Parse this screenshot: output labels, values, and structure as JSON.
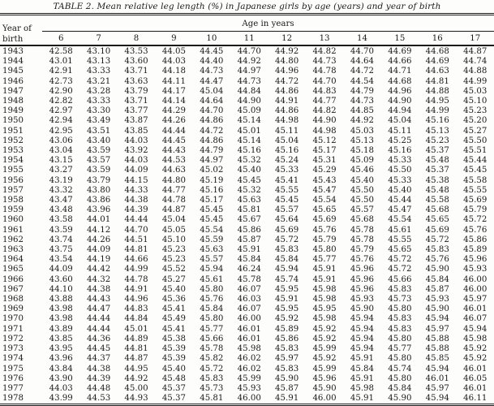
{
  "page": {
    "title_label": "TABLE 2.",
    "title_text": "Mean relative leg length (%) in Japanese girls by age (years) and year of birth"
  },
  "chart_data": {
    "type": "table",
    "title": "TABLE 2. Mean relative leg length (%) in Japanese girls by age (years) and year of birth",
    "row_header": "Year of birth",
    "row_header_lines": [
      "Year of",
      "birth"
    ],
    "column_group_header": "Age in years",
    "columns": [
      "6",
      "7",
      "8",
      "9",
      "10",
      "11",
      "12",
      "13",
      "14",
      "15",
      "16",
      "17"
    ],
    "rows": [
      {
        "year": "1943",
        "values": [
          "42.58",
          "43.10",
          "43.53",
          "44.05",
          "44.45",
          "44.70",
          "44.92",
          "44.82",
          "44.70",
          "44.69",
          "44.68",
          "44.87"
        ]
      },
      {
        "year": "1944",
        "values": [
          "43.01",
          "43.13",
          "43.60",
          "44.03",
          "44.40",
          "44.92",
          "44.80",
          "44.73",
          "44.64",
          "44.66",
          "44.69",
          "44.74"
        ]
      },
      {
        "year": "1945",
        "values": [
          "42.91",
          "43.33",
          "43.71",
          "44.18",
          "44.73",
          "44.97",
          "44.96",
          "44.78",
          "44.72",
          "44.71",
          "44.63",
          "44.88"
        ]
      },
      {
        "year": "1946",
        "values": [
          "42.73",
          "43.21",
          "43.63",
          "44.11",
          "44.47",
          "44.73",
          "44.72",
          "44.70",
          "44.54",
          "44.68",
          "44.81",
          "44.99"
        ]
      },
      {
        "year": "1947",
        "values": [
          "42.90",
          "43.28",
          "43.79",
          "44.17",
          "45.04",
          "44.84",
          "44.86",
          "44.83",
          "44.79",
          "44.96",
          "44.88",
          "45.03"
        ]
      },
      {
        "year": "1948",
        "values": [
          "42.82",
          "43.33",
          "43.71",
          "44.14",
          "44.64",
          "44.90",
          "44.91",
          "44.77",
          "44.73",
          "44.90",
          "44.95",
          "45.10"
        ]
      },
      {
        "year": "1949",
        "values": [
          "42.97",
          "43.30",
          "43.77",
          "44.29",
          "44.70",
          "45.09",
          "44.86",
          "44.82",
          "44.85",
          "44.94",
          "44.99",
          "45.23"
        ]
      },
      {
        "year": "1950",
        "values": [
          "42.94",
          "43.49",
          "43.87",
          "44.26",
          "44.86",
          "45.14",
          "44.98",
          "44.90",
          "44.92",
          "45.04",
          "45.16",
          "45.20"
        ]
      },
      {
        "year": "1951",
        "values": [
          "42.95",
          "43.51",
          "43.85",
          "44.44",
          "44.72",
          "45.01",
          "45.11",
          "44.98",
          "45.03",
          "45.11",
          "45.13",
          "45.27"
        ]
      },
      {
        "year": "1952",
        "values": [
          "43.06",
          "43.40",
          "44.03",
          "44.45",
          "44.86",
          "45.14",
          "45.04",
          "45.12",
          "45.13",
          "45.25",
          "45.23",
          "45.50"
        ]
      },
      {
        "year": "1953",
        "values": [
          "43.04",
          "43.59",
          "43.92",
          "44.43",
          "44.79",
          "45.16",
          "45.16",
          "45.17",
          "45.18",
          "45.16",
          "45.37",
          "45.51"
        ]
      },
      {
        "year": "1954",
        "values": [
          "43.15",
          "43.57",
          "44.03",
          "44.53",
          "44.97",
          "45.32",
          "45.24",
          "45.31",
          "45.09",
          "45.33",
          "45.48",
          "45.44"
        ]
      },
      {
        "year": "1955",
        "values": [
          "43.27",
          "43.59",
          "44.09",
          "44.63",
          "45.02",
          "45.40",
          "45.33",
          "45.29",
          "45.46",
          "45.50",
          "45.37",
          "45.45"
        ]
      },
      {
        "year": "1956",
        "values": [
          "43.19",
          "43.79",
          "44.15",
          "44.80",
          "45.19",
          "45.45",
          "45.41",
          "45.43",
          "45.40",
          "45.33",
          "45.38",
          "45.58"
        ]
      },
      {
        "year": "1957",
        "values": [
          "43.32",
          "43.80",
          "44.33",
          "44.77",
          "45.16",
          "45.32",
          "45.55",
          "45.47",
          "45.50",
          "45.40",
          "45.48",
          "45.55"
        ]
      },
      {
        "year": "1958",
        "values": [
          "43.47",
          "43.86",
          "44.38",
          "44.78",
          "45.17",
          "45.63",
          "45.45",
          "45.54",
          "45.50",
          "45.44",
          "45.58",
          "45.69"
        ]
      },
      {
        "year": "1959",
        "values": [
          "43.48",
          "43.96",
          "44.39",
          "44.87",
          "45.45",
          "45.81",
          "45.57",
          "45.65",
          "45.57",
          "45.47",
          "45.68",
          "45.79"
        ]
      },
      {
        "year": "1960",
        "values": [
          "43.58",
          "44.01",
          "44.44",
          "45.04",
          "45.45",
          "45.67",
          "45.64",
          "45.69",
          "45.68",
          "45.54",
          "45.65",
          "45.72"
        ]
      },
      {
        "year": "1961",
        "values": [
          "43.59",
          "44.12",
          "44.70",
          "45.05",
          "45.54",
          "45.86",
          "45.69",
          "45.76",
          "45.78",
          "45.61",
          "45.69",
          "45.76"
        ]
      },
      {
        "year": "1962",
        "values": [
          "43.74",
          "44.26",
          "44.51",
          "45.10",
          "45.59",
          "45.87",
          "45.72",
          "45.79",
          "45.78",
          "45.55",
          "45.72",
          "45.86"
        ]
      },
      {
        "year": "1963",
        "values": [
          "43.75",
          "44.09",
          "44.81",
          "45.23",
          "45.63",
          "45.91",
          "45.83",
          "45.80",
          "45.79",
          "45.65",
          "45.83",
          "45.89"
        ]
      },
      {
        "year": "1964",
        "values": [
          "43.54",
          "44.19",
          "44.66",
          "45.23",
          "45.57",
          "45.84",
          "45.84",
          "45.77",
          "45.76",
          "45.72",
          "45.76",
          "45.96"
        ]
      },
      {
        "year": "1965",
        "values": [
          "44.09",
          "44.42",
          "44.99",
          "45.52",
          "45.94",
          "46.24",
          "45.94",
          "45.91",
          "45.96",
          "45.72",
          "45.90",
          "45.93"
        ]
      },
      {
        "year": "1966",
        "values": [
          "43.60",
          "44.32",
          "44.78",
          "45.27",
          "45.61",
          "45.78",
          "45.74",
          "45.91",
          "45.96",
          "45.66",
          "45.84",
          "46.00"
        ]
      },
      {
        "year": "1967",
        "values": [
          "44.10",
          "44.38",
          "44.91",
          "45.40",
          "45.80",
          "46.07",
          "45.95",
          "45.98",
          "45.96",
          "45.83",
          "45.87",
          "46.00"
        ]
      },
      {
        "year": "1968",
        "values": [
          "43.88",
          "44.43",
          "44.96",
          "45.36",
          "45.76",
          "46.03",
          "45.91",
          "45.98",
          "45.93",
          "45.73",
          "45.93",
          "45.97"
        ]
      },
      {
        "year": "1969",
        "values": [
          "43.98",
          "44.47",
          "44.83",
          "45.41",
          "45.84",
          "46.07",
          "45.95",
          "45.95",
          "45.90",
          "45.80",
          "45.90",
          "46.01"
        ]
      },
      {
        "year": "1970",
        "values": [
          "43.98",
          "44.44",
          "44.84",
          "45.49",
          "45.80",
          "46.00",
          "45.92",
          "45.98",
          "45.94",
          "45.83",
          "45.94",
          "46.07"
        ]
      },
      {
        "year": "1971",
        "values": [
          "43.89",
          "44.44",
          "45.01",
          "45.41",
          "45.77",
          "46.01",
          "45.89",
          "45.92",
          "45.94",
          "45.83",
          "45.97",
          "45.94"
        ]
      },
      {
        "year": "1972",
        "values": [
          "43.85",
          "44.36",
          "44.89",
          "45.38",
          "45.66",
          "46.01",
          "45.86",
          "45.92",
          "45.94",
          "45.80",
          "45.88",
          "45.98"
        ]
      },
      {
        "year": "1973",
        "values": [
          "43.95",
          "44.45",
          "44.81",
          "45.39",
          "45.78",
          "45.98",
          "45.83",
          "45.99",
          "45.94",
          "45.77",
          "45.88",
          "45.92"
        ]
      },
      {
        "year": "1974",
        "values": [
          "43.96",
          "44.37",
          "44.87",
          "45.39",
          "45.82",
          "46.02",
          "45.97",
          "45.92",
          "45.91",
          "45.80",
          "45.85",
          "45.92"
        ]
      },
      {
        "year": "1975",
        "values": [
          "43.84",
          "44.38",
          "44.95",
          "45.40",
          "45.72",
          "46.02",
          "45.83",
          "45.99",
          "45.84",
          "45.74",
          "45.94",
          "46.01"
        ]
      },
      {
        "year": "1976",
        "values": [
          "43.90",
          "44.39",
          "44.92",
          "45.48",
          "45.83",
          "45.99",
          "45.90",
          "45.96",
          "45.91",
          "45.80",
          "46.01",
          "46.05"
        ]
      },
      {
        "year": "1977",
        "values": [
          "44.03",
          "44.48",
          "45.00",
          "45.37",
          "45.73",
          "45.93",
          "45.87",
          "45.90",
          "45.98",
          "45.84",
          "45.97",
          "46.01"
        ]
      },
      {
        "year": "1978",
        "values": [
          "43.99",
          "44.53",
          "44.93",
          "45.37",
          "45.81",
          "46.00",
          "45.91",
          "46.00",
          "45.91",
          "45.90",
          "45.94",
          "46.11"
        ]
      }
    ]
  }
}
